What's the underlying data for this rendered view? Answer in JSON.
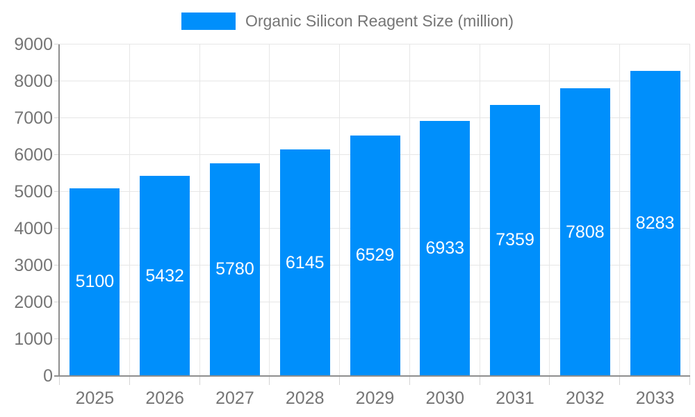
{
  "chart_data": {
    "type": "bar",
    "title": "Organic Silicon Reagent Size (million)",
    "categories": [
      "2025",
      "2026",
      "2027",
      "2028",
      "2029",
      "2030",
      "2031",
      "2032",
      "2033"
    ],
    "values": [
      5100,
      5432,
      5780,
      6145,
      6529,
      6933,
      7359,
      7808,
      8283
    ],
    "xlabel": "",
    "ylabel": "",
    "ylim": [
      0,
      9000
    ],
    "ytick_step": 1000,
    "grid": true,
    "legend_position": "top",
    "value_labels": "inside-center",
    "colors": {
      "bar": "#008FFB",
      "value_label": "#ffffff",
      "axis_text": "#757575",
      "grid_line": "#e6e6e6",
      "axis_line": "#8e8e8e",
      "tick_line": "#d4d4d4",
      "background": "#ffffff"
    }
  }
}
